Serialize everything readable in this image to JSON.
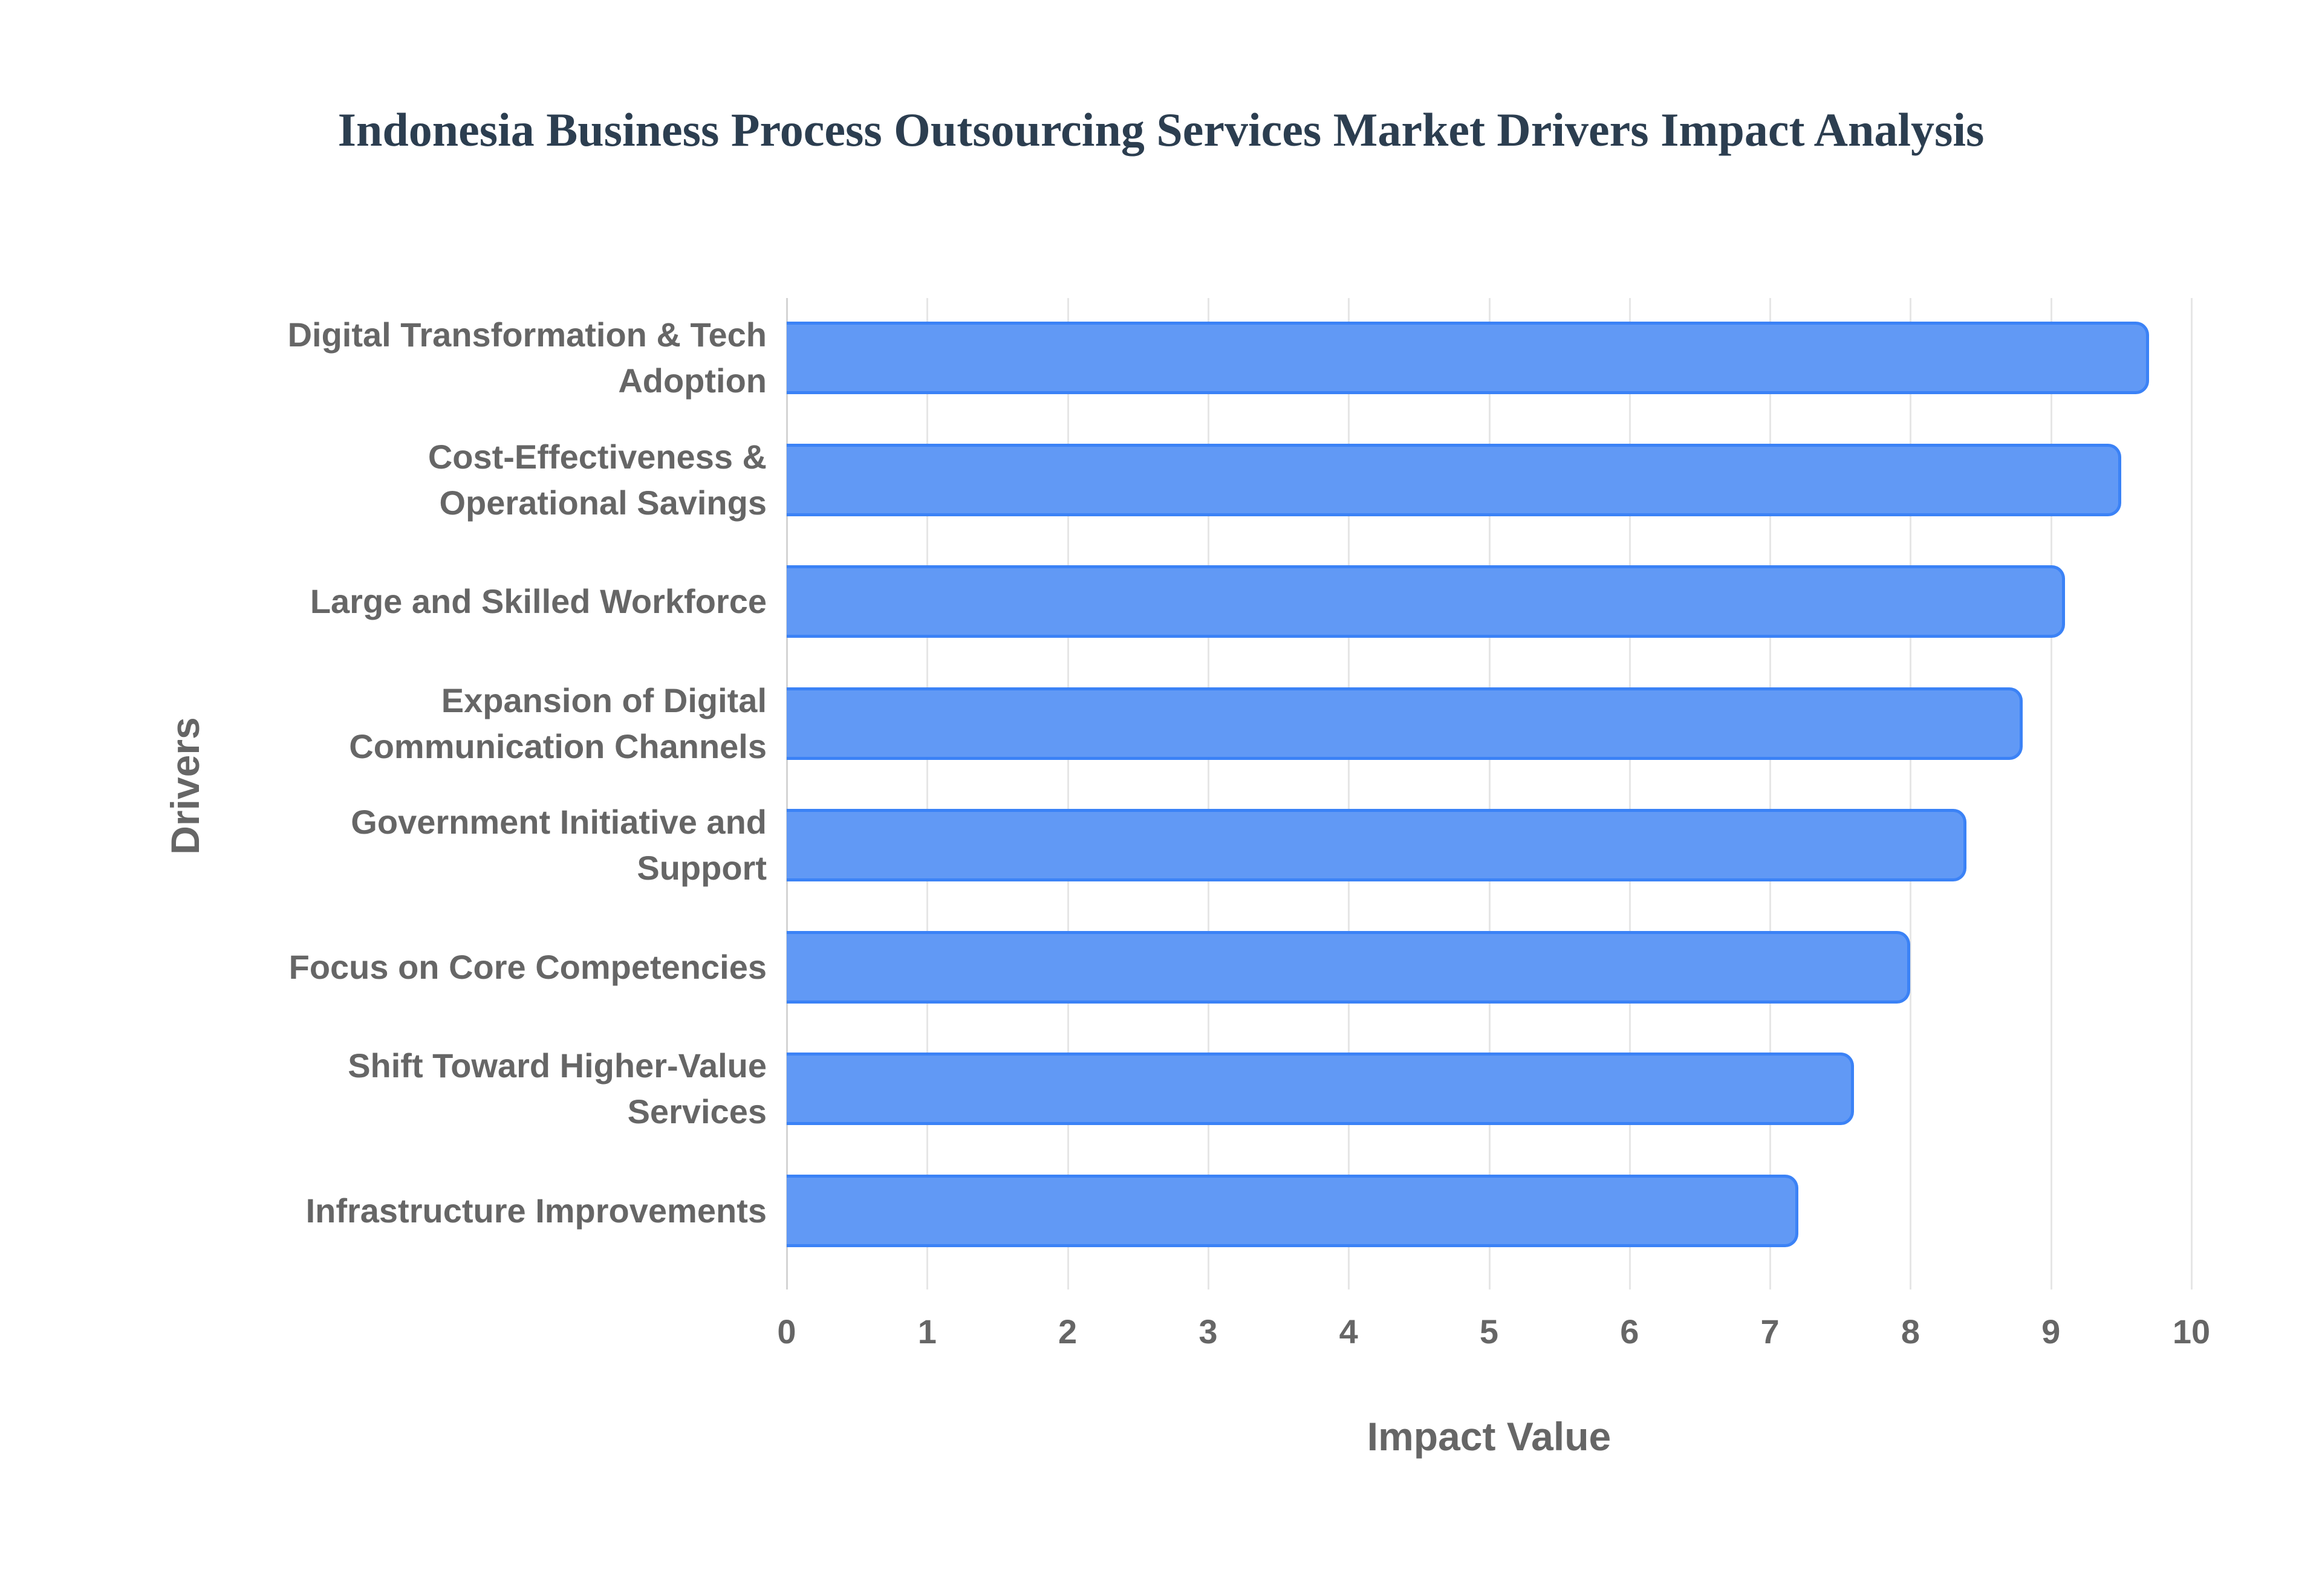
{
  "title": "Indonesia Business Process Outsourcing Services Market Drivers Impact Analysis",
  "colors": {
    "bar_fill": "#6199f5",
    "bar_border": "#3b82f6",
    "title": "#2c3e50",
    "labels": "#666666",
    "grid": "#e6e6e6"
  },
  "axes": {
    "x_title": "Impact Value",
    "y_title": "Drivers",
    "x_ticks": [
      "0",
      "1",
      "2",
      "3",
      "4",
      "5",
      "6",
      "7",
      "8",
      "9",
      "10"
    ]
  },
  "chart_data": {
    "type": "bar",
    "orientation": "horizontal",
    "title": "Indonesia Business Process Outsourcing Services Market Drivers Impact Analysis",
    "xlabel": "Impact Value",
    "ylabel": "Drivers",
    "xlim": [
      0,
      10
    ],
    "grid": true,
    "legend": null,
    "categories": [
      "Digital Transformation & Tech Adoption",
      "Cost-Effectiveness & Operational Savings",
      "Large and Skilled Workforce",
      "Expansion of Digital Communication Channels",
      "Government Initiative and Support",
      "Focus on Core Competencies",
      "Shift Toward Higher-Value Services",
      "Infrastructure Improvements"
    ],
    "values": [
      9.7,
      9.5,
      9.1,
      8.8,
      8.4,
      8.0,
      7.6,
      7.2
    ]
  },
  "label_lines": [
    [
      "Digital Transformation & Tech",
      "Adoption"
    ],
    [
      "Cost-Effectiveness &",
      "Operational Savings"
    ],
    [
      "Large and Skilled Workforce"
    ],
    [
      "Expansion of Digital",
      "Communication Channels"
    ],
    [
      "Government Initiative and",
      "Support"
    ],
    [
      "Focus on Core Competencies"
    ],
    [
      "Shift Toward Higher-Value",
      "Services"
    ],
    [
      "Infrastructure Improvements"
    ]
  ]
}
